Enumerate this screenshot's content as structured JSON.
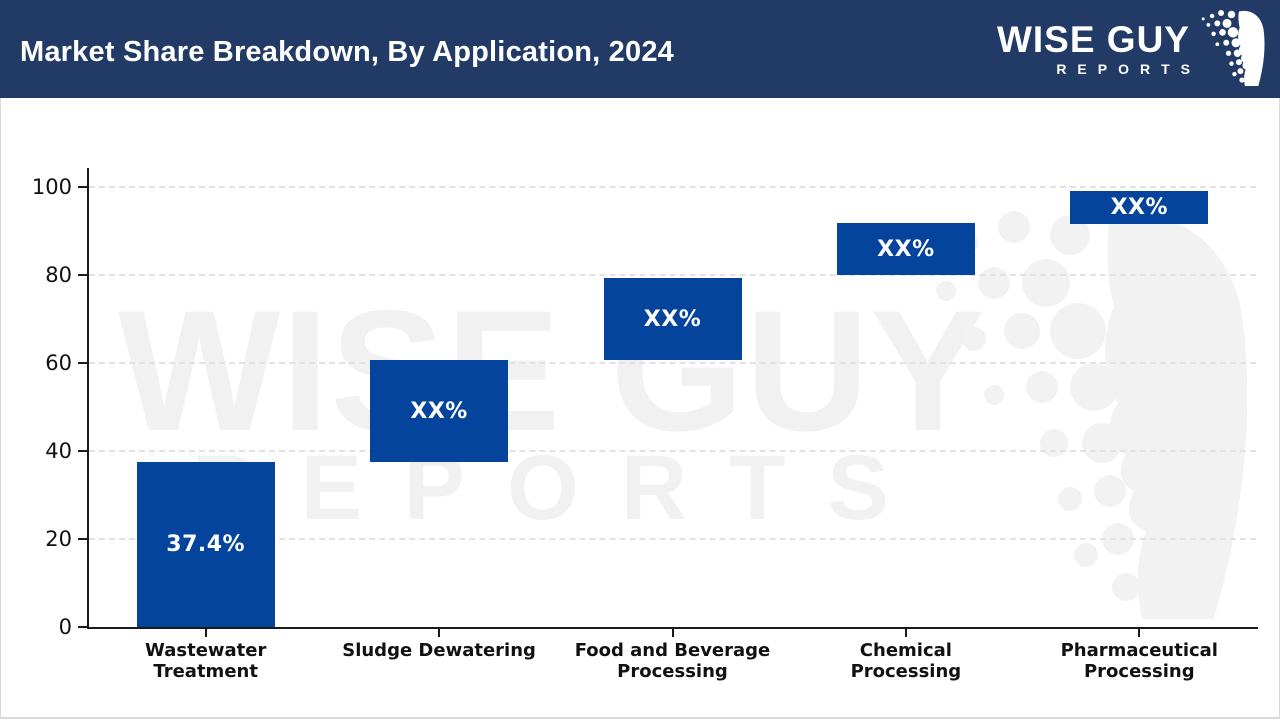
{
  "header": {
    "title": "Market Share Breakdown, By Application, 2024",
    "bg_color": "#223a66",
    "logo": {
      "line1": "WISE GUY",
      "line2": "REPORTS"
    }
  },
  "watermark": {
    "line1": "WISE GUY",
    "line2": "REPORTS"
  },
  "chart_data": {
    "type": "bar",
    "subtype": "waterfall",
    "title": "Market Share Breakdown, By Application, 2024",
    "categories": [
      "Wastewater Treatment",
      "Sludge Dewatering",
      "Food and Beverage Processing",
      "Chemical Processing",
      "Pharmaceutical Processing"
    ],
    "category_lines": [
      [
        "Wastewater",
        "Treatment"
      ],
      [
        "Sludge Dewatering"
      ],
      [
        "Food and Beverage",
        "Processing"
      ],
      [
        "Chemical",
        "Processing"
      ],
      [
        "Pharmaceutical",
        "Processing"
      ]
    ],
    "segments": [
      {
        "start": 0,
        "end": 37.4,
        "label": "37.4%"
      },
      {
        "start": 37.4,
        "end": 60.6,
        "label": "XX%"
      },
      {
        "start": 60.6,
        "end": 79.3,
        "label": "XX%"
      },
      {
        "start": 79.9,
        "end": 91.9,
        "label": "XX%"
      },
      {
        "start": 91.7,
        "end": 99.2,
        "label": "XX%"
      }
    ],
    "segment_heights": [
      37.4,
      23.2,
      18.7,
      12.0,
      7.5
    ],
    "y_ticks": [
      0,
      20,
      40,
      60,
      80,
      100
    ],
    "ylim": [
      0,
      105
    ],
    "xlabel": "",
    "ylabel": "",
    "bar_color": "#05449c",
    "grid": "horizontal-dashed",
    "gridline_color": "#e2e2e2",
    "legend": "none"
  }
}
